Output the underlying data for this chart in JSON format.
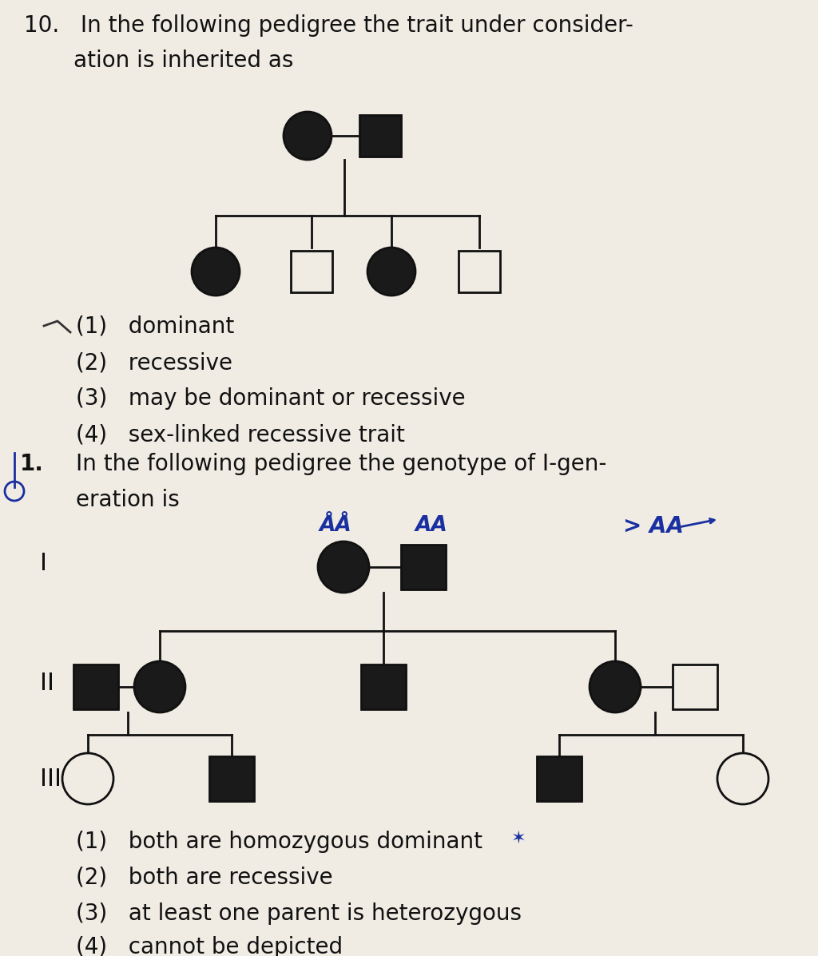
{
  "bg_color": "#f0ece4",
  "text_color": "#111111",
  "filled_color": "#1a1a1a",
  "empty_color": "#f0ece4",
  "line_color": "#111111",
  "handwriting_color": "#1a2fa0",
  "q10_line1": "10.   In the following pedigree the trait under consider-",
  "q10_line2": "       ation is inherited as",
  "q10_options": [
    "(1)   dominant",
    "(2)   recessive",
    "(3)   may be dominant or recessive",
    "(4)   sex-linked recessive trait"
  ],
  "q11_line1": "1.    In the following pedigree the genotype of I-gen-",
  "q11_line2": "       eration is",
  "q11_options": [
    "(1)   both are homozygous dominant",
    "(2)   both are recessive",
    "(3)   at least one parent is heterozygous",
    "(4)   cannot be depicted"
  ]
}
